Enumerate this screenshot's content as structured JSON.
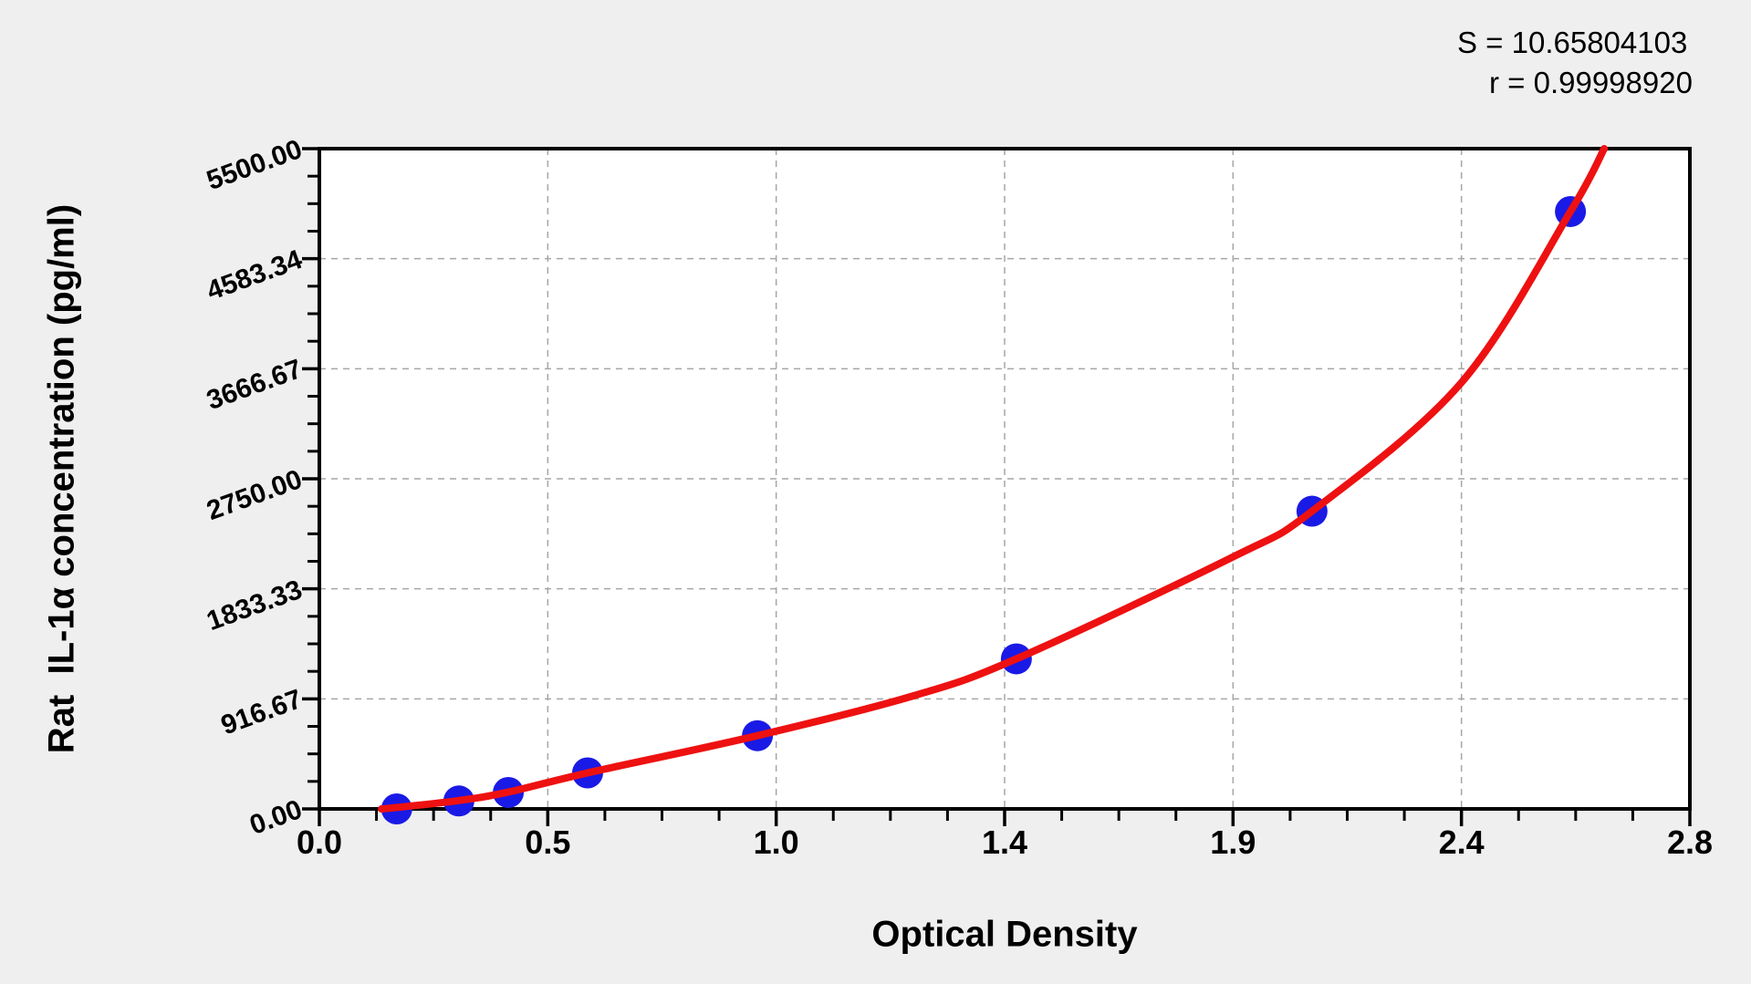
{
  "annotation": {
    "s_label": "S = 10.65804103",
    "r_label": "r = 0.99998920"
  },
  "chart_data": {
    "type": "scatter",
    "title": "",
    "xlabel": "Optical Density",
    "ylabel": "Rat  IL-1α concentration (pg/ml)",
    "xlim": [
      0,
      2.8
    ],
    "ylim": [
      0,
      5500
    ],
    "x_ticks": [
      "0.0",
      "0.5",
      "1.0",
      "1.4",
      "1.9",
      "2.4",
      "2.8"
    ],
    "y_ticks": [
      "5500.00",
      "4583.34",
      "3666.67",
      "2750.00",
      "1833.33",
      "916.67",
      "0.00"
    ],
    "grid": "major-dashed",
    "legend": "none",
    "points": [
      {
        "od": 0.158,
        "conc": 0
      },
      {
        "od": 0.285,
        "conc": 66
      },
      {
        "od": 0.386,
        "conc": 137
      },
      {
        "od": 0.548,
        "conc": 300
      },
      {
        "od": 0.895,
        "conc": 610
      },
      {
        "od": 1.424,
        "conc": 1250
      },
      {
        "od": 2.028,
        "conc": 2480
      },
      {
        "od": 2.556,
        "conc": 4976
      }
    ],
    "curve": [
      {
        "od": 0.127,
        "conc": 0
      },
      {
        "od": 0.158,
        "conc": 12
      },
      {
        "od": 0.285,
        "conc": 70
      },
      {
        "od": 0.386,
        "conc": 140
      },
      {
        "od": 0.548,
        "conc": 300
      },
      {
        "od": 0.895,
        "conc": 610
      },
      {
        "od": 1.212,
        "conc": 940
      },
      {
        "od": 1.424,
        "conc": 1250
      },
      {
        "od": 1.867,
        "conc": 2100
      },
      {
        "od": 2.028,
        "conc": 2480
      },
      {
        "od": 2.333,
        "conc": 3550
      },
      {
        "od": 2.556,
        "conc": 4976
      },
      {
        "od": 2.625,
        "conc": 5500
      }
    ],
    "colors": {
      "point": "#1a1ae6",
      "curve": "#ee1111",
      "grid": "#a6a6a6",
      "axis": "#000000",
      "plot_bg": "#ffffff",
      "page_bg": "#efefef"
    }
  }
}
